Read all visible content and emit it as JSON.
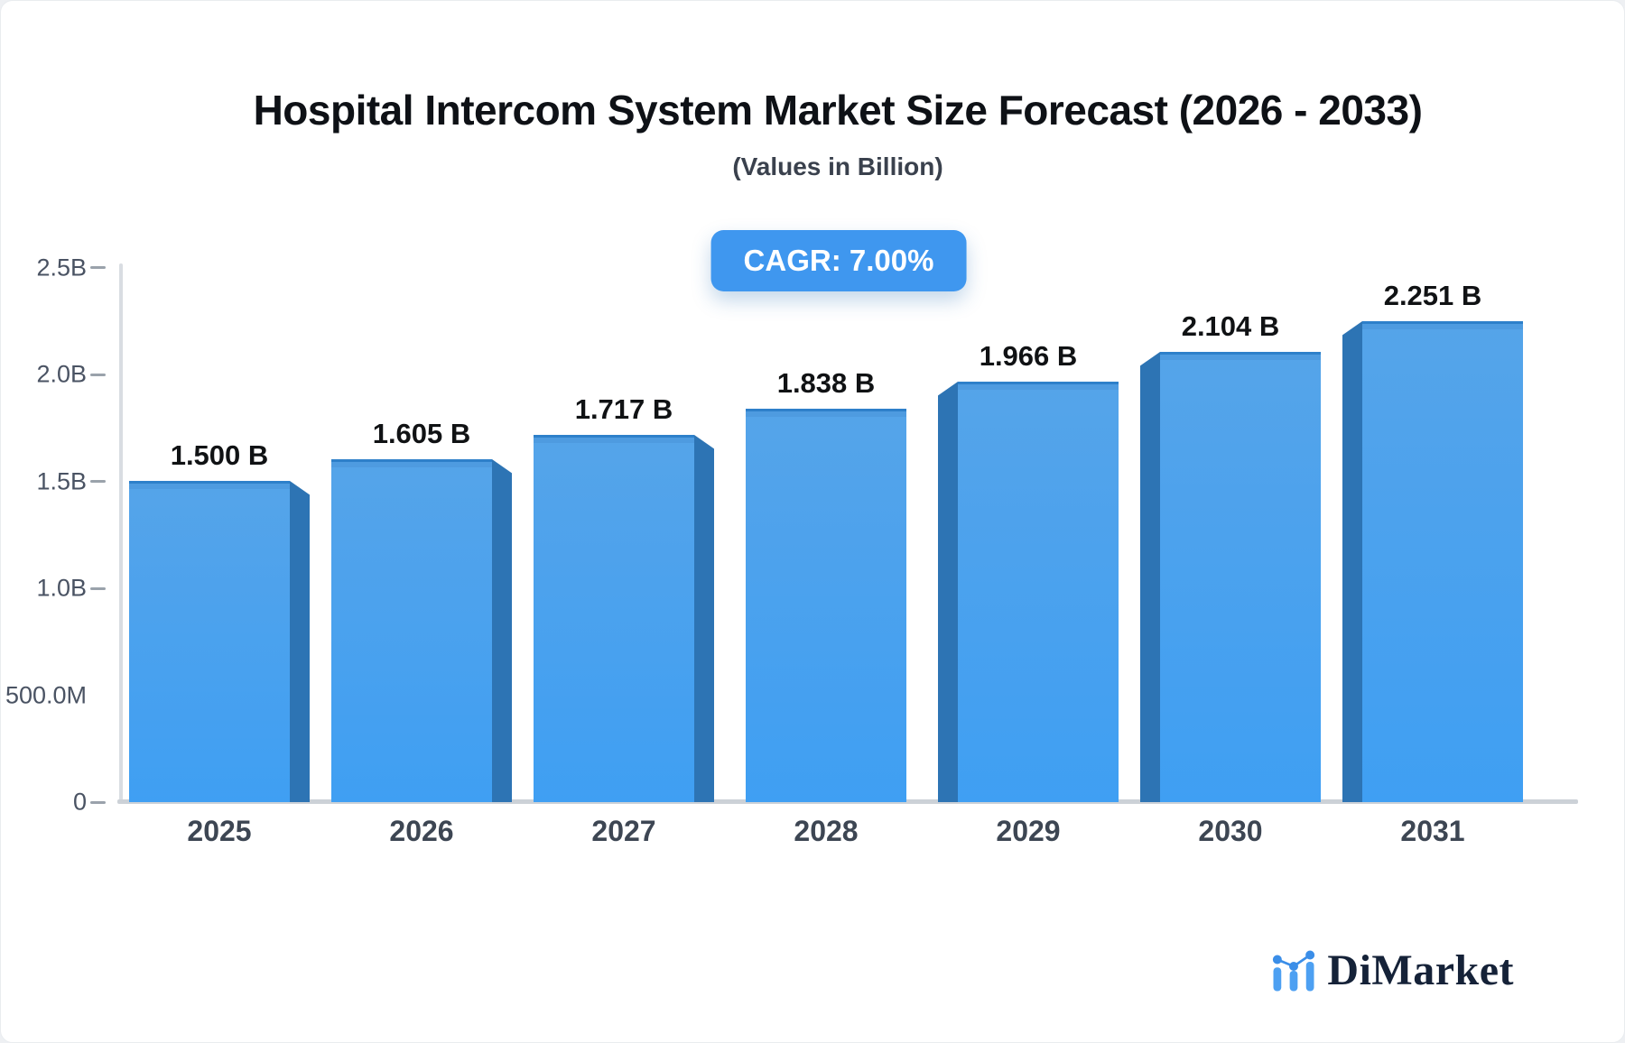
{
  "header": {
    "title": "Hospital Intercom System Market Size Forecast (2026 - 2033)",
    "subtitle": "(Values in Billion)"
  },
  "badge": {
    "label": "CAGR: 7.00%",
    "color": "#3F97EF"
  },
  "chart_data": {
    "type": "bar",
    "title": "Hospital Intercom System Market Size Forecast (2026 - 2033)",
    "subtitle": "(Values in Billion)",
    "xlabel": "",
    "ylabel": "",
    "ylim": [
      0,
      2.5
    ],
    "grid": false,
    "legend": "none",
    "categories": [
      "2025",
      "2026",
      "2027",
      "2028",
      "2029",
      "2030",
      "2031"
    ],
    "values": [
      1.5,
      1.605,
      1.717,
      1.838,
      1.966,
      2.104,
      2.251
    ],
    "value_labels": [
      "1.500 B",
      "1.605 B",
      "1.717 B",
      "1.838 B",
      "1.966 B",
      "2.104 B",
      "2.251 B"
    ],
    "yticks": [
      {
        "value": 0,
        "label": "0",
        "dash": true
      },
      {
        "value": 0.5,
        "label": "500.0M",
        "dash": false
      },
      {
        "value": 1.0,
        "label": "1.0B",
        "dash": true
      },
      {
        "value": 1.5,
        "label": "1.5B",
        "dash": true
      },
      {
        "value": 2.0,
        "label": "2.0B",
        "dash": true
      },
      {
        "value": 2.5,
        "label": "2.5B",
        "dash": true
      }
    ],
    "colors": {
      "bar_face_top": "#55A4E9",
      "bar_face_bottom": "#3F9FF3",
      "bar_side": "#2D74B4",
      "accent": "#3F97EF"
    }
  },
  "footer": {
    "logo_text": "DiMarket",
    "logo_icon": "bar-line-chart-icon"
  }
}
